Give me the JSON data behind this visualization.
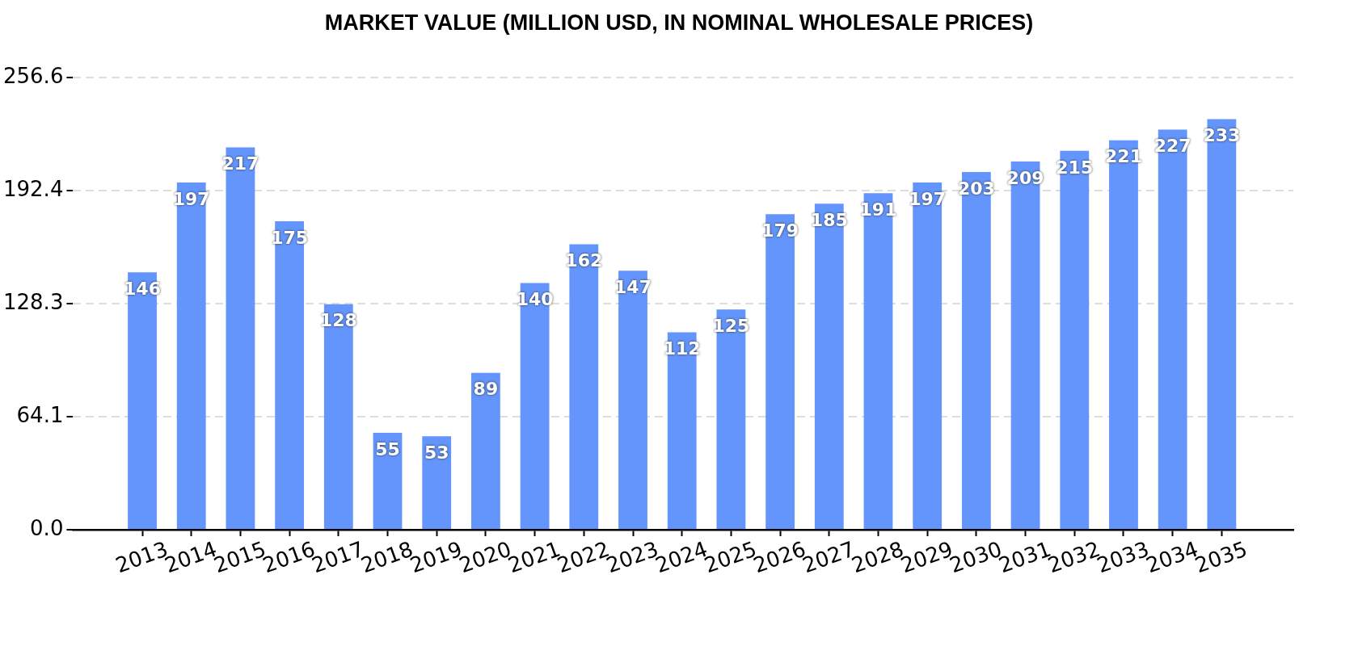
{
  "chart_data": {
    "type": "bar",
    "title": "MARKET VALUE (MILLION USD, IN NOMINAL WHOLESALE PRICES)",
    "categories": [
      "2013",
      "2014",
      "2015",
      "2016",
      "2017",
      "2018",
      "2019",
      "2020",
      "2021",
      "2022",
      "2023",
      "2024",
      "2025",
      "2026",
      "2027",
      "2028",
      "2029",
      "2030",
      "2031",
      "2032",
      "2033",
      "2034",
      "2035"
    ],
    "values": [
      146,
      197,
      217,
      175,
      128,
      55,
      53,
      89,
      140,
      162,
      147,
      112,
      125,
      179,
      185,
      191,
      197,
      203,
      209,
      215,
      221,
      227,
      233
    ],
    "color": "#6495fc",
    "ylim": [
      0,
      256.6
    ],
    "yticks": [
      {
        "value": 0,
        "label": "0.0"
      },
      64.1,
      128.3,
      192.4,
      256.6
    ],
    "grid": "y",
    "data_labels": true
  }
}
